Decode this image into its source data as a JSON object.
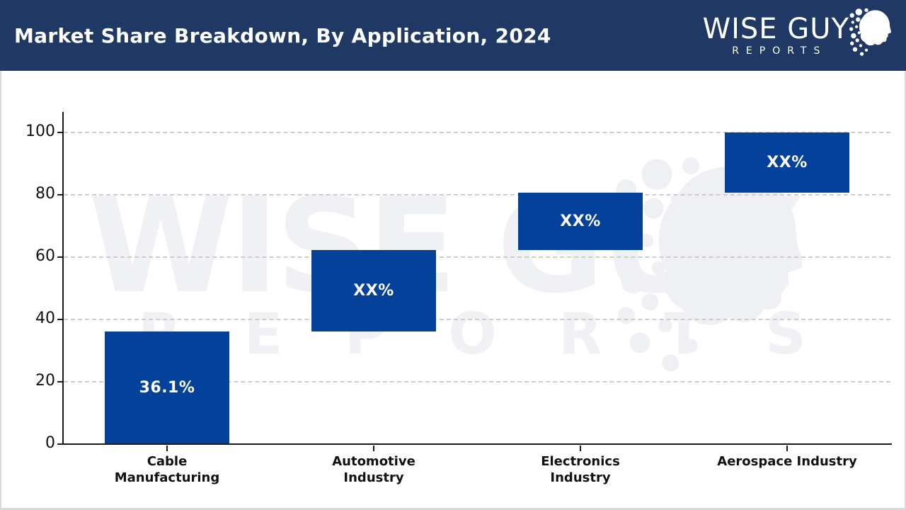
{
  "header": {
    "title": "Market Share Breakdown, By Application, 2024",
    "brand_line1": "WISE GUY",
    "brand_line2": "REPORTS"
  },
  "watermark": {
    "line1": "WISE GUY",
    "line2": "R E P O R T S"
  },
  "colors": {
    "header_bg": "#1f3864",
    "bar": "#04419a",
    "bar_label": "#ffffff",
    "grid": "#cdcdcd",
    "axis": "#1a1a1a",
    "border": "#d9d9d9",
    "watermark": "#f0f1f4"
  },
  "chart_data": {
    "type": "bar",
    "subtype": "waterfall",
    "title": "Market Share Breakdown, By Application, 2024",
    "categories": [
      "Cable\nManufacturing",
      "Automotive\nIndustry",
      "Electronics\nIndustry",
      "Aerospace Industry"
    ],
    "series": [
      {
        "name": "Market share (%)",
        "segments": [
          {
            "category": "Cable Manufacturing",
            "start": 0,
            "end": 36.1,
            "label": "36.1%"
          },
          {
            "category": "Automotive Industry",
            "start": 36.1,
            "end": 62.3,
            "label": "XX%"
          },
          {
            "category": "Electronics Industry",
            "start": 62.3,
            "end": 80.7,
            "label": "XX%"
          },
          {
            "category": "Aerospace Industry",
            "start": 80.7,
            "end": 100,
            "label": "XX%"
          }
        ]
      }
    ],
    "ylim": [
      0,
      100
    ],
    "yticks": [
      0,
      20,
      40,
      60,
      80,
      100
    ],
    "grid": "horizontal-dashed",
    "legend": "none"
  }
}
